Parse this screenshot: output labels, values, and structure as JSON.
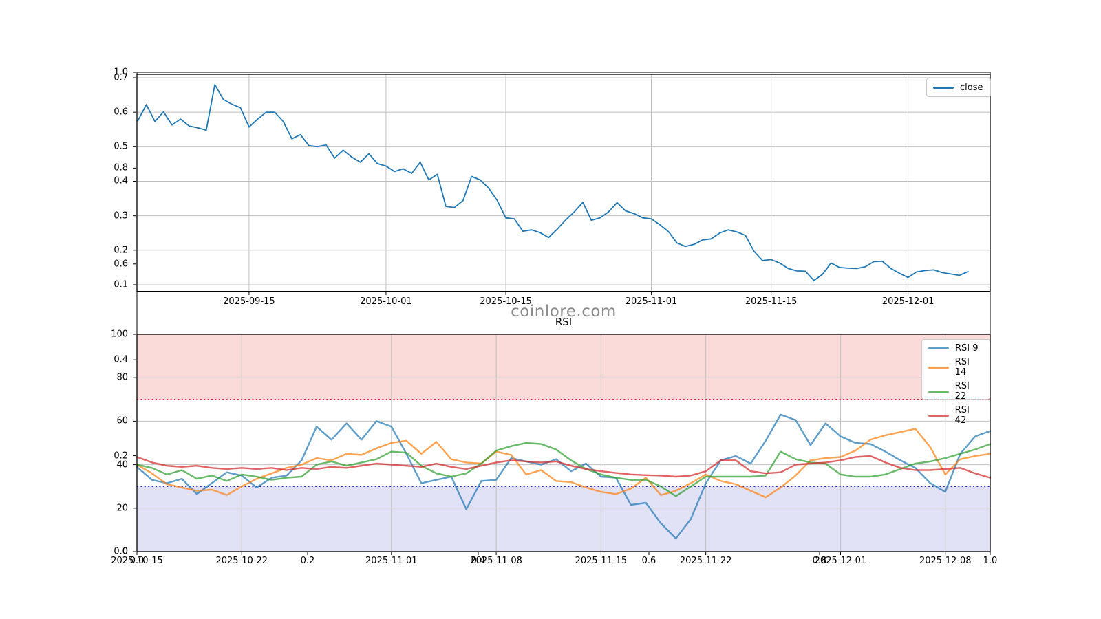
{
  "watermark": "coinlore.com",
  "rsi_title": "RSI",
  "overlay_axis": {
    "x_ticks": [
      {
        "label": "0.0",
        "value": 0.0
      },
      {
        "label": "0.2",
        "value": 0.2
      },
      {
        "label": "0.4",
        "value": 0.4
      },
      {
        "label": "0.6",
        "value": 0.6
      },
      {
        "label": "0.8",
        "value": 0.8
      },
      {
        "label": "1.0",
        "value": 1.0
      }
    ],
    "y_ticks": [
      {
        "label": "0.0",
        "value": 0.0
      },
      {
        "label": "0.2",
        "value": 0.2
      },
      {
        "label": "0.4",
        "value": 0.4
      },
      {
        "label": "0.6",
        "value": 0.6
      },
      {
        "label": "0.8",
        "value": 0.8
      },
      {
        "label": "1.0",
        "value": 1.0
      }
    ]
  },
  "chart_data": [
    {
      "type": "line",
      "panel": "price",
      "grid": true,
      "legend_position": "upper right",
      "x_start_date": "2025-09-02",
      "x_tick_dates": [
        "2025-09-15",
        "2025-10-01",
        "2025-10-15",
        "2025-11-01",
        "2025-11-15",
        "2025-12-01"
      ],
      "y_tick_values": [
        0.1,
        0.2,
        0.3,
        0.4,
        0.5,
        0.6,
        0.7
      ],
      "y_tick_labels": [
        "0.1",
        "0.2",
        "0.3",
        "0.4",
        "0.5",
        "0.6",
        "0.7"
      ],
      "ylim": [
        0.08,
        0.71
      ],
      "series": [
        {
          "name": "close",
          "color": "#1f77b4",
          "values": [
            0.575,
            0.622,
            0.573,
            0.601,
            0.563,
            0.58,
            0.56,
            0.555,
            0.548,
            0.68,
            0.637,
            0.623,
            0.613,
            0.557,
            0.58,
            0.6,
            0.6,
            0.573,
            0.523,
            0.535,
            0.503,
            0.5,
            0.505,
            0.467,
            0.49,
            0.47,
            0.455,
            0.48,
            0.451,
            0.444,
            0.428,
            0.436,
            0.423,
            0.455,
            0.404,
            0.42,
            0.327,
            0.324,
            0.344,
            0.414,
            0.404,
            0.38,
            0.344,
            0.294,
            0.291,
            0.255,
            0.259,
            0.251,
            0.237,
            0.261,
            0.288,
            0.311,
            0.339,
            0.287,
            0.294,
            0.311,
            0.338,
            0.314,
            0.306,
            0.294,
            0.291,
            0.274,
            0.254,
            0.221,
            0.211,
            0.217,
            0.23,
            0.233,
            0.25,
            0.259,
            0.253,
            0.243,
            0.197,
            0.17,
            0.173,
            0.163,
            0.147,
            0.14,
            0.139,
            0.112,
            0.13,
            0.163,
            0.15,
            0.148,
            0.147,
            0.152,
            0.167,
            0.168,
            0.147,
            0.133,
            0.121,
            0.137,
            0.141,
            0.143,
            0.135,
            0.131,
            0.127,
            0.138
          ]
        }
      ]
    },
    {
      "type": "line",
      "panel": "rsi",
      "title": "RSI",
      "grid": true,
      "legend_position": "upper right",
      "x_start_date": "2025-10-15",
      "x_tick_dates": [
        "2025-10-15",
        "2025-10-22",
        "2025-11-01",
        "2025-11-08",
        "2025-11-15",
        "2025-11-22",
        "2025-12-01",
        "2025-12-08"
      ],
      "y_tick_values": [
        0,
        20,
        40,
        60,
        80,
        100
      ],
      "y_tick_labels": [
        "0",
        "20",
        "40",
        "60",
        "80",
        "100"
      ],
      "ylim": [
        0,
        100
      ],
      "bands": [
        {
          "from": 70,
          "to": 100,
          "color": "#fbdada",
          "name": "overbought-band"
        },
        {
          "from": 0,
          "to": 30,
          "color": "#e2e2f6",
          "name": "oversold-band"
        }
      ],
      "ref_lines": [
        {
          "value": 70,
          "color": "#dc143c",
          "name": "overbought-line"
        },
        {
          "value": 30,
          "color": "#2222b8",
          "name": "oversold-line"
        }
      ],
      "series": [
        {
          "name": "RSI 9",
          "color": "#1f77b4",
          "values": [
            39,
            33,
            31.5,
            33.5,
            26.5,
            31.5,
            36.5,
            35,
            29.5,
            34,
            35,
            42,
            57.5,
            51.5,
            59,
            51.5,
            60,
            57.5,
            45,
            31.5,
            33,
            34.5,
            19.5,
            32.5,
            33,
            43,
            41.5,
            40,
            42.5,
            37,
            40.5,
            34.5,
            34,
            21.5,
            22.5,
            13,
            6,
            15,
            31.5,
            42,
            44,
            40.5,
            51,
            63,
            60.5,
            49,
            59,
            53,
            50,
            49.5,
            46,
            42,
            38.5,
            31.5,
            27.5,
            45,
            53,
            55.5
          ]
        },
        {
          "name": "RSI 14",
          "color": "#ff7f0e",
          "values": [
            40,
            36,
            31,
            29.5,
            28,
            28.5,
            26,
            30,
            33.5,
            36,
            38.5,
            40,
            43,
            42,
            45,
            44.5,
            47.5,
            50,
            51,
            45,
            50.5,
            42.5,
            41,
            40.5,
            46,
            44.5,
            35.5,
            37.5,
            32.5,
            32,
            29.5,
            27.5,
            26.5,
            29,
            34,
            26,
            28,
            31.5,
            35.5,
            32.5,
            31,
            28,
            25,
            29.5,
            35,
            42,
            43,
            43.5,
            46.5,
            51.5,
            53.5,
            55,
            56.5,
            48,
            35.5,
            42.5,
            44,
            45
          ]
        },
        {
          "name": "RSI 22",
          "color": "#2ca02c",
          "values": [
            40,
            38.5,
            35.5,
            37.5,
            33.5,
            35,
            32.5,
            35.5,
            34.5,
            33,
            34,
            34.5,
            40,
            41.5,
            39.5,
            41,
            42.5,
            46,
            45.5,
            39.5,
            36,
            34.5,
            36,
            40.5,
            46.5,
            48.5,
            50,
            49.5,
            47,
            42,
            38,
            35.5,
            34,
            33,
            33,
            30,
            25.5,
            30,
            34.5,
            34.5,
            34.5,
            34.5,
            35,
            46,
            42.5,
            41,
            40.5,
            35.5,
            34.5,
            34.5,
            35.5,
            38,
            40.5,
            41.5,
            43,
            45,
            47,
            49.5
          ]
        },
        {
          "name": "RSI 42",
          "color": "#d62728",
          "values": [
            43.5,
            41,
            39.5,
            39,
            39.5,
            38.5,
            38,
            38.5,
            38,
            38.5,
            37.5,
            38.5,
            38,
            39,
            38.5,
            39.5,
            40.5,
            40,
            39.5,
            39,
            40.5,
            39,
            38,
            39.5,
            41,
            42,
            41.5,
            41,
            41.5,
            39.5,
            38,
            37,
            36.2,
            35.5,
            35.2,
            35,
            34.5,
            35,
            37,
            42,
            42,
            37,
            36,
            36.5,
            40,
            40.5,
            41,
            42,
            43.5,
            44,
            41,
            38.5,
            37.5,
            37.5,
            38,
            38.5,
            36,
            34
          ]
        }
      ]
    }
  ]
}
